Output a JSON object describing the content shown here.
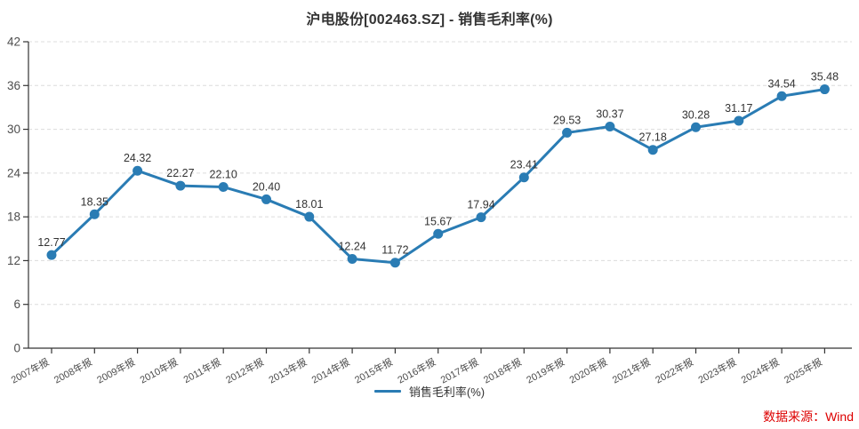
{
  "title": "沪电股份[002463.SZ] - 销售毛利率(%)",
  "legend": {
    "label": "销售毛利率(%)"
  },
  "source_note": "数据来源：Wind",
  "colors": {
    "line": "#2a7cb4",
    "grid": "#dcdcdc",
    "axis": "#333333",
    "value_label": "#333333",
    "axis_label": "#4d4d4d",
    "title": "#333333",
    "source": "#dd0000",
    "background": "#ffffff"
  },
  "chart_data": {
    "type": "line",
    "title": "沪电股份[002463.SZ] - 销售毛利率(%)",
    "categories": [
      "2007年报",
      "2008年报",
      "2009年报",
      "2010年报",
      "2011年报",
      "2012年报",
      "2013年报",
      "2014年报",
      "2015年报",
      "2016年报",
      "2017年报",
      "2018年报",
      "2019年报",
      "2020年报",
      "2021年报",
      "2022年报",
      "2023年报",
      "2024年报",
      "2025年报"
    ],
    "values": [
      12.77,
      18.35,
      24.32,
      22.27,
      22.1,
      20.4,
      18.01,
      12.24,
      11.72,
      15.67,
      17.94,
      23.41,
      29.53,
      30.37,
      27.18,
      30.28,
      31.17,
      34.54,
      35.48
    ],
    "series_name": "销售毛利率(%)",
    "xlabel": "",
    "ylabel": "",
    "ylim": [
      0,
      42
    ],
    "yticks": [
      0,
      6,
      12,
      18,
      24,
      30,
      36,
      42
    ],
    "grid": "horizontal-dashed",
    "legend_position": "bottom-center",
    "point_labels": "two-decimals-above-markers",
    "x_label_rotation_deg": -28
  }
}
